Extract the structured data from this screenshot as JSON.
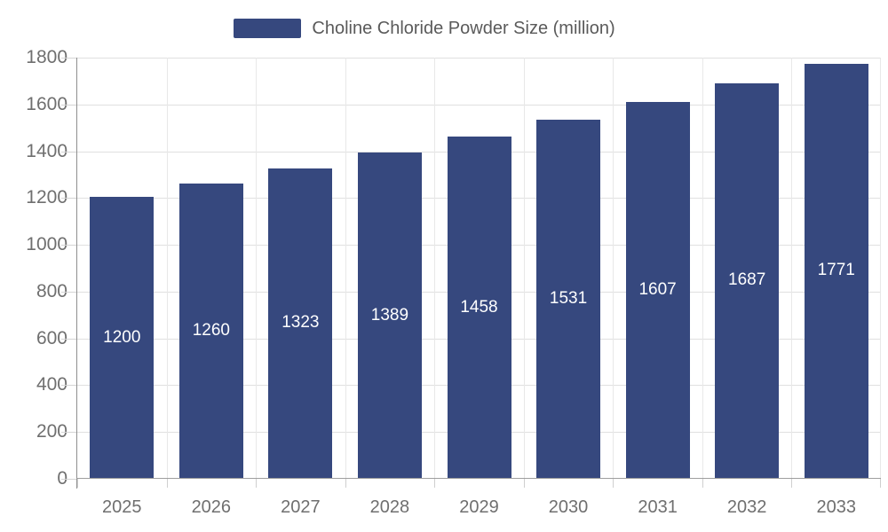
{
  "chart_data": {
    "type": "bar",
    "title": "Choline Chloride Powder Size (million)",
    "legend": [
      "Choline Chloride Powder Size (million)"
    ],
    "legend_position": "top-center",
    "categories": [
      "2025",
      "2026",
      "2027",
      "2028",
      "2029",
      "2030",
      "2031",
      "2032",
      "2033"
    ],
    "values": [
      1200,
      1260,
      1323,
      1389,
      1458,
      1531,
      1607,
      1687,
      1771
    ],
    "xlabel": "",
    "ylabel": "",
    "ylim": [
      0,
      1800
    ],
    "ytick_step": 200,
    "grid": true,
    "bar_label_position": "inside-center",
    "colors": {
      "bar": "#36487E",
      "bar_label": "#FFFFFF",
      "axis_label": "#6F6F6F",
      "legend_text": "#5A5A5A"
    }
  }
}
